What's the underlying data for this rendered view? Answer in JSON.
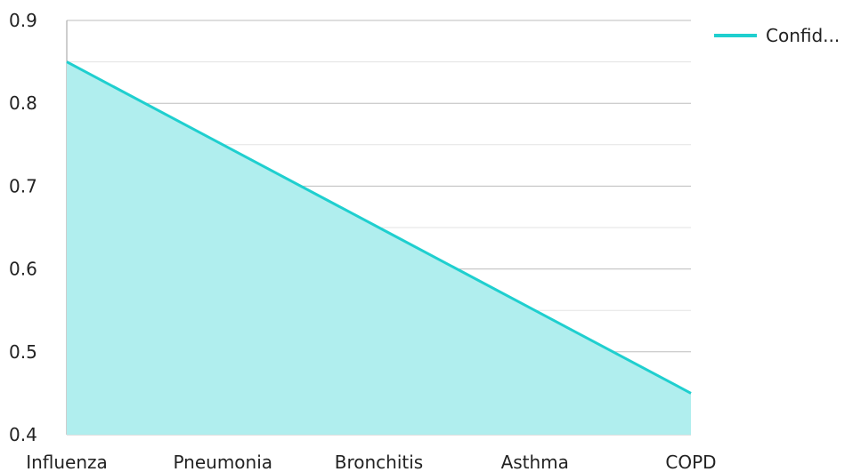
{
  "chart_data": {
    "type": "area",
    "categories": [
      "Influenza",
      "Pneumonia",
      "Bronchitis",
      "Asthma",
      "COPD"
    ],
    "series": [
      {
        "name": "Confid...",
        "values": [
          0.85,
          0.75,
          0.65,
          0.55,
          0.45
        ]
      }
    ],
    "title": "",
    "xlabel": "",
    "ylabel": "",
    "ylim": [
      0.4,
      0.9
    ],
    "yticks": [
      "0.4",
      "0.5",
      "0.6",
      "0.7",
      "0.8",
      "0.9"
    ],
    "grid": true,
    "legend_position": "top-right",
    "colors": {
      "line": "#1fcfcf",
      "fill": "#b0eeee",
      "grid_major": "#bdbdbd",
      "grid_minor": "#e3e3e3",
      "axis": "#9e9e9e"
    }
  }
}
